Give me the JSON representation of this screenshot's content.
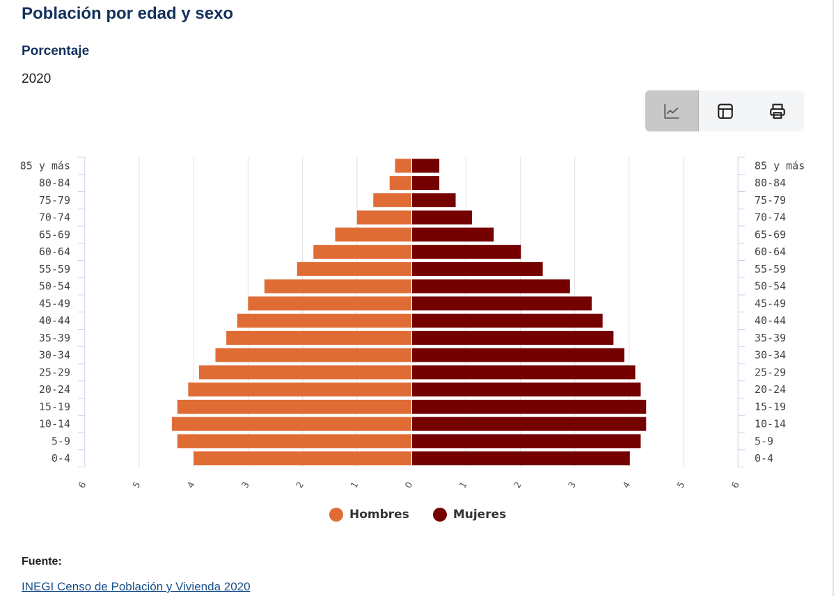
{
  "header": {
    "title": "Población por edad y sexo",
    "subtitle": "Porcentaje",
    "year": "2020"
  },
  "toolbar": {
    "buttons": [
      {
        "icon": "line-chart-icon",
        "active": true
      },
      {
        "icon": "table-icon",
        "active": false
      },
      {
        "icon": "print-icon",
        "active": false
      }
    ]
  },
  "colors": {
    "hombres": "#e06c35",
    "mujeres": "#740000",
    "grid": "#e0e0e0",
    "axis": "#c9d3e6",
    "text": "#444444"
  },
  "chart_data": {
    "type": "bar",
    "orientation": "horizontal-population-pyramid",
    "categories": [
      "85 y más",
      "80-84",
      "75-79",
      "70-74",
      "65-69",
      "60-64",
      "55-59",
      "50-54",
      "45-49",
      "40-44",
      "35-39",
      "30-34",
      "25-29",
      "20-24",
      "15-19",
      "10-14",
      "5-9",
      "0-4"
    ],
    "series": [
      {
        "name": "Hombres",
        "values": [
          0.3,
          0.4,
          0.7,
          1.0,
          1.4,
          1.8,
          2.1,
          2.7,
          3.0,
          3.2,
          3.4,
          3.6,
          3.9,
          4.1,
          4.3,
          4.4,
          4.3,
          4.0
        ]
      },
      {
        "name": "Mujeres",
        "values": [
          0.5,
          0.5,
          0.8,
          1.1,
          1.5,
          2.0,
          2.4,
          2.9,
          3.3,
          3.5,
          3.7,
          3.9,
          4.1,
          4.2,
          4.3,
          4.3,
          4.2,
          4.0
        ]
      }
    ],
    "xlim": [
      -6,
      6
    ],
    "x_ticks": [
      "6",
      "5",
      "4",
      "3",
      "2",
      "1",
      "0",
      "1",
      "2",
      "3",
      "4",
      "5",
      "6"
    ],
    "grid": true,
    "legend_position": "bottom-center"
  },
  "legend": {
    "items": [
      {
        "label": "Hombres"
      },
      {
        "label": "Mujeres"
      }
    ]
  },
  "source": {
    "label": "Fuente:",
    "link_text": "INEGI Censo de Población y Vivienda 2020"
  }
}
